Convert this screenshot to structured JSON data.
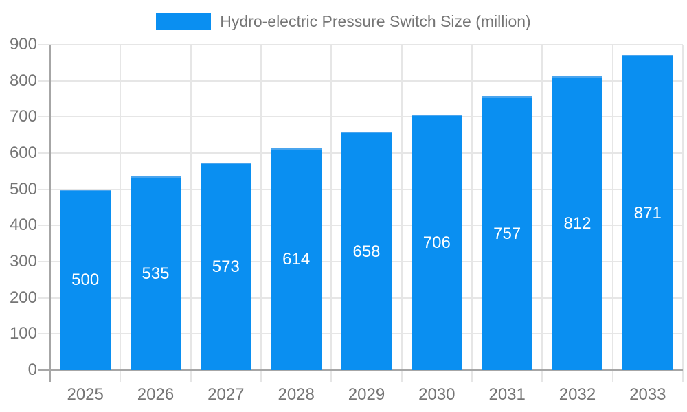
{
  "legend": {
    "label": "Hydro-electric Pressure Switch Size (million)"
  },
  "chart_data": {
    "type": "bar",
    "title": "Hydro-electric Pressure Switch Size (million)",
    "categories": [
      "2025",
      "2026",
      "2027",
      "2028",
      "2029",
      "2030",
      "2031",
      "2032",
      "2033"
    ],
    "values": [
      500,
      535,
      573,
      614,
      658,
      706,
      757,
      812,
      871
    ],
    "value_labels": [
      "500",
      "535",
      "573",
      "614",
      "658",
      "706",
      "757",
      "812",
      "871"
    ],
    "xlabel": "",
    "ylabel": "",
    "ylim": [
      0,
      900
    ],
    "yticks": [
      0,
      100,
      200,
      300,
      400,
      500,
      600,
      700,
      800,
      900
    ],
    "grid": true,
    "legend_position": "top-center",
    "value_label_position": "inside-center",
    "colors": {
      "bar": "#0a8ff1",
      "bar_top_edge": "#4aa5ee",
      "grid": "#e6e6e6",
      "axis": "#a6a6a6",
      "tick_text": "#757575",
      "value_text": "#ffffff",
      "background": "#ffffff"
    }
  }
}
